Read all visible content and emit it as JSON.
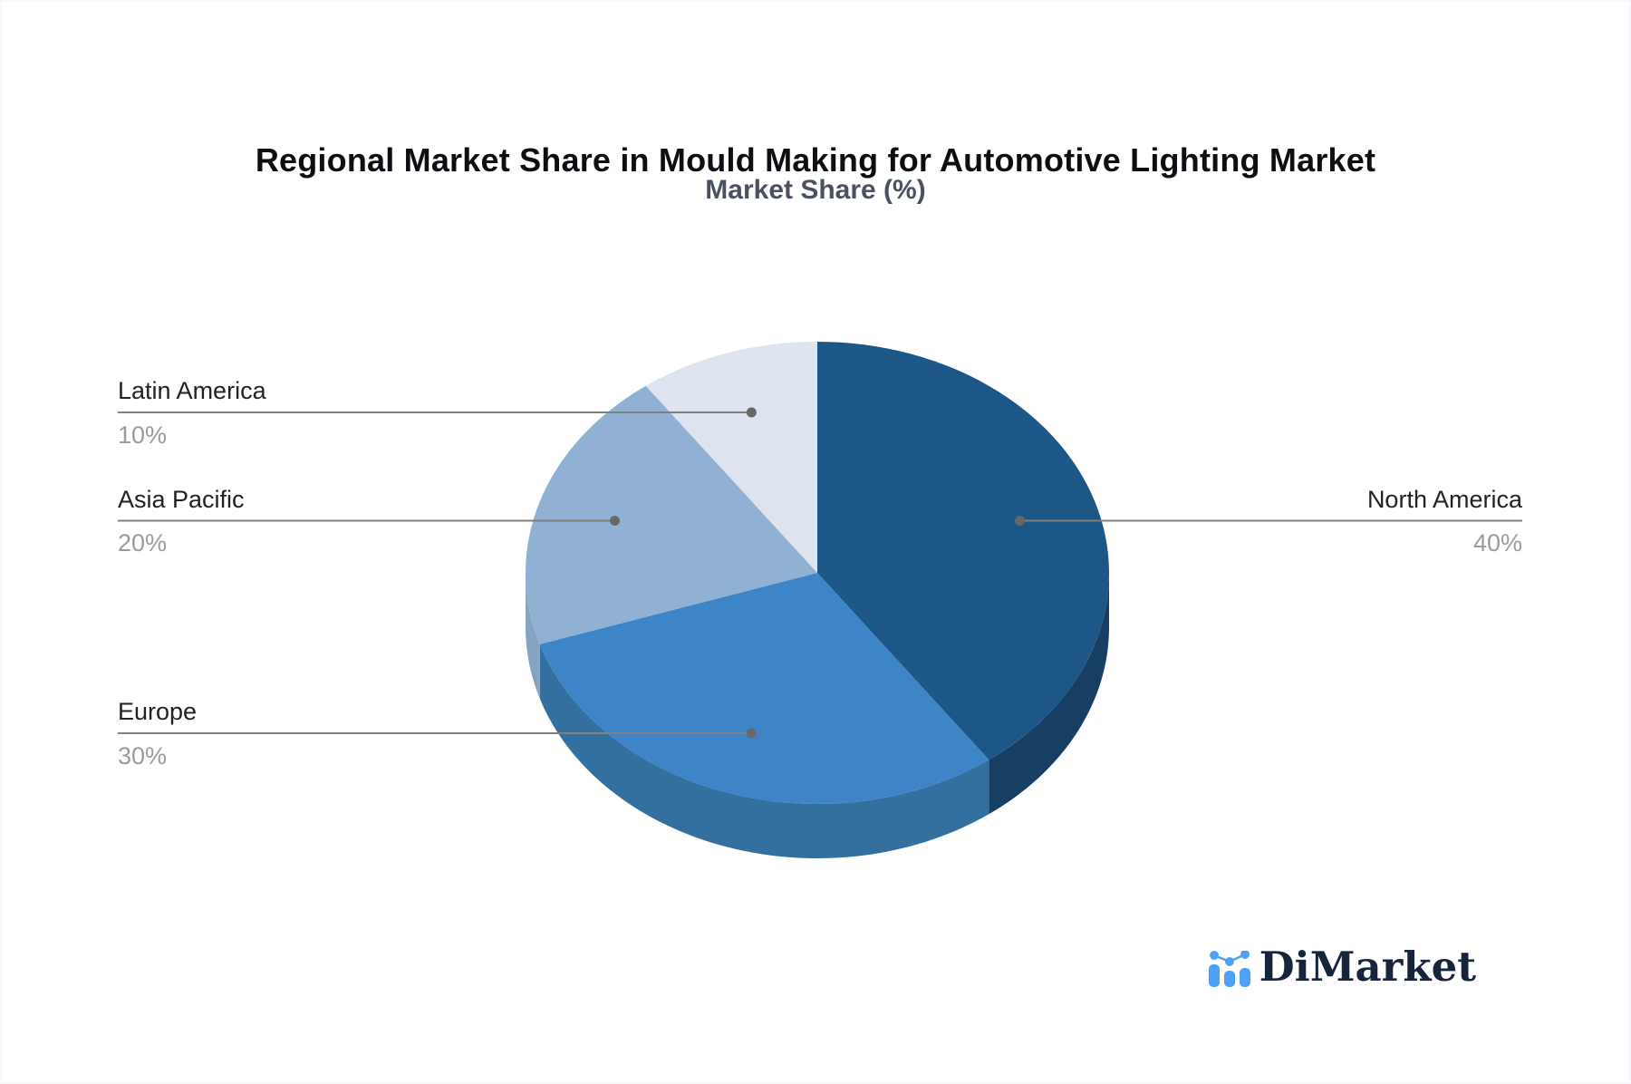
{
  "header": {
    "title_color": "#0d0d12",
    "subtitle_color": "#4a5160"
  },
  "chart_data": {
    "type": "pie",
    "title": "Regional Market Share in Mould Making for Automotive Lighting Market",
    "subtitle": "Market Share (%)",
    "unit": "%",
    "effect_3d": true,
    "start_angle_deg": 0,
    "direction": "clockwise",
    "legend": "none",
    "slices": [
      {
        "label": "North America",
        "value": 40,
        "display": "40%",
        "color": "#1d5787",
        "side_color": "#173e63",
        "label_side": "right"
      },
      {
        "label": "Europe",
        "value": 30,
        "display": "30%",
        "color": "#3d85c6",
        "side_color": "#33709f",
        "label_side": "left"
      },
      {
        "label": "Asia Pacific",
        "value": 20,
        "display": "20%",
        "color": "#91b1d4",
        "side_color": "#87a3c2",
        "label_side": "left"
      },
      {
        "label": "Latin America",
        "value": 10,
        "display": "10%",
        "color": "#dde4ef",
        "side_color": "#c3cfdf",
        "label_side": "left"
      }
    ],
    "label_text_color": "#222222",
    "label_value_color": "#9b9b9b",
    "leader_line_color": "#808080",
    "leader_dot_color": "#686868"
  },
  "logo": {
    "text": "DiMarket",
    "icon": "bar-line-chart-icon",
    "icon_color": "#4da2f5",
    "text_color": "#16243c"
  }
}
